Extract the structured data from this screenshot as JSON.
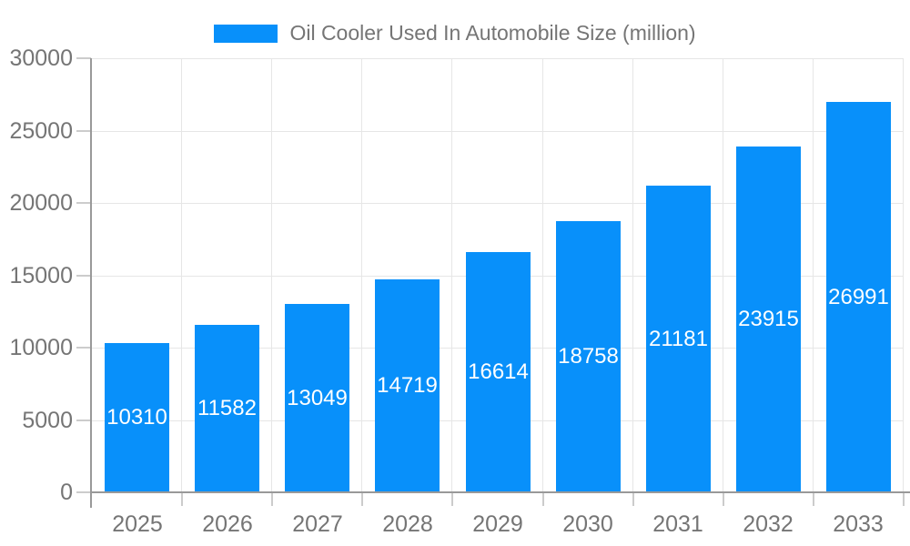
{
  "legend": {
    "label": "Oil Cooler Used In Automobile Size (million)"
  },
  "chart_data": {
    "type": "bar",
    "title": "Oil Cooler Used In Automobile Size (million)",
    "categories": [
      "2025",
      "2026",
      "2027",
      "2028",
      "2029",
      "2030",
      "2031",
      "2032",
      "2033"
    ],
    "values": [
      10310,
      11582,
      13049,
      14719,
      16614,
      18758,
      21181,
      23915,
      26991
    ],
    "value_labels": [
      "10310",
      "11582",
      "13049",
      "14719",
      "16614",
      "18758",
      "21181",
      "23915",
      "26991"
    ],
    "xlabel": "",
    "ylabel": "",
    "ylim": [
      0,
      30000
    ],
    "ytick_step": 5000,
    "ytick_labels": [
      "0",
      "5000",
      "10000",
      "15000",
      "20000",
      "25000",
      "30000"
    ],
    "grid": true,
    "legend_position": "top",
    "value_labels_inside_bars": true,
    "colors": {
      "bar": "#0890fa",
      "axis_label": "#757575",
      "legend_text": "#757575",
      "gridline": "#e6e6e6",
      "tick": "#cccccc",
      "axis_line": "#999999",
      "value_label": "#ffffff"
    }
  }
}
